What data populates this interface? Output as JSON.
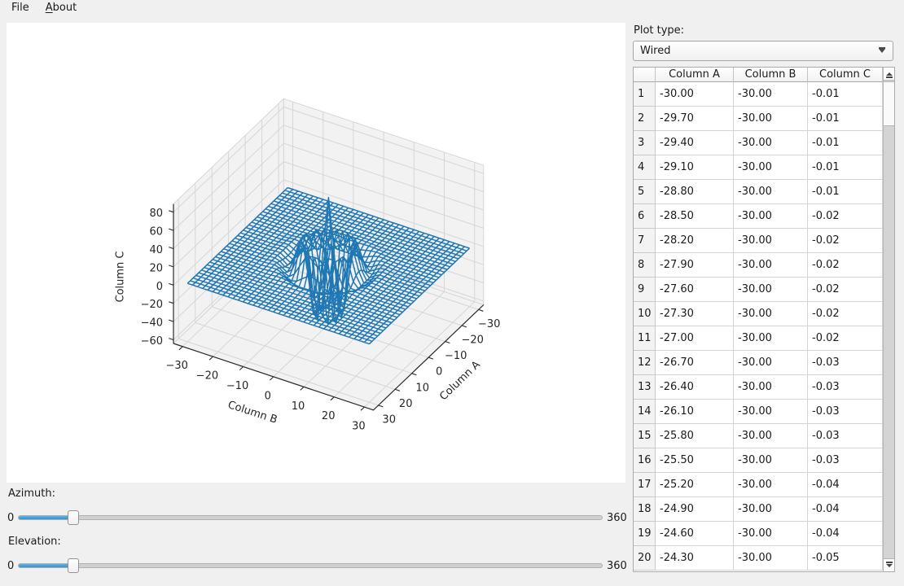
{
  "menu": {
    "items": [
      {
        "label": "File",
        "underline": -1
      },
      {
        "label": "About",
        "underline": 0
      }
    ]
  },
  "plot_type": {
    "label": "Plot type:",
    "value": "Wired"
  },
  "chart_data": {
    "type": "wireframe_3d_surface",
    "title": "",
    "xlabel": "Column B",
    "ylabel": "Column A",
    "zlabel": "Column C",
    "x_ticks": [
      -30,
      -20,
      -10,
      0,
      10,
      20,
      30
    ],
    "y_ticks": [
      -30,
      -20,
      -10,
      0,
      10,
      20,
      30
    ],
    "z_ticks": [
      -60,
      -40,
      -20,
      0,
      20,
      40,
      60,
      80
    ],
    "x_data_range": [
      -30,
      30
    ],
    "y_data_range": [
      -30,
      30
    ],
    "axis_limits": {
      "x": [
        -33,
        33
      ],
      "y": [
        -33,
        33
      ],
      "z": [
        -64,
        89
      ]
    },
    "wire_color": "#1f77b4",
    "pane_color": "#f2f2f2",
    "grid_color": "#d6d6d6",
    "axis_color": "#2b2b2b",
    "tick_text_color": "#262626",
    "surface_model": {
      "description": "radial ripple: z = amplitude * cos(k*r) * exp(-(r/sigma)^2), r = sqrt(A^2+B^2)",
      "amplitude": 75,
      "k": 0.75,
      "sigma": 7.8,
      "grid_lines": 37
    }
  },
  "table": {
    "headers": [
      "",
      "Column A",
      "Column B",
      "Column C"
    ],
    "rows": [
      [
        "1",
        "-30.00",
        "-30.00",
        "-0.01"
      ],
      [
        "2",
        "-29.70",
        "-30.00",
        "-0.01"
      ],
      [
        "3",
        "-29.40",
        "-30.00",
        "-0.01"
      ],
      [
        "4",
        "-29.10",
        "-30.00",
        "-0.01"
      ],
      [
        "5",
        "-28.80",
        "-30.00",
        "-0.01"
      ],
      [
        "6",
        "-28.50",
        "-30.00",
        "-0.02"
      ],
      [
        "7",
        "-28.20",
        "-30.00",
        "-0.02"
      ],
      [
        "8",
        "-27.90",
        "-30.00",
        "-0.02"
      ],
      [
        "9",
        "-27.60",
        "-30.00",
        "-0.02"
      ],
      [
        "10",
        "-27.30",
        "-30.00",
        "-0.02"
      ],
      [
        "11",
        "-27.00",
        "-30.00",
        "-0.02"
      ],
      [
        "12",
        "-26.70",
        "-30.00",
        "-0.03"
      ],
      [
        "13",
        "-26.40",
        "-30.00",
        "-0.03"
      ],
      [
        "14",
        "-26.10",
        "-30.00",
        "-0.03"
      ],
      [
        "15",
        "-25.80",
        "-30.00",
        "-0.03"
      ],
      [
        "16",
        "-25.50",
        "-30.00",
        "-0.03"
      ],
      [
        "17",
        "-25.20",
        "-30.00",
        "-0.04"
      ],
      [
        "18",
        "-24.90",
        "-30.00",
        "-0.04"
      ],
      [
        "19",
        "-24.60",
        "-30.00",
        "-0.04"
      ],
      [
        "20",
        "-24.30",
        "-30.00",
        "-0.05"
      ]
    ]
  },
  "controls": {
    "azimuth": {
      "label": "Azimuth:",
      "min": "0",
      "max": "360",
      "fraction": 0.087
    },
    "elevation": {
      "label": "Elevation:",
      "min": "0",
      "max": "360",
      "fraction": 0.087
    }
  }
}
